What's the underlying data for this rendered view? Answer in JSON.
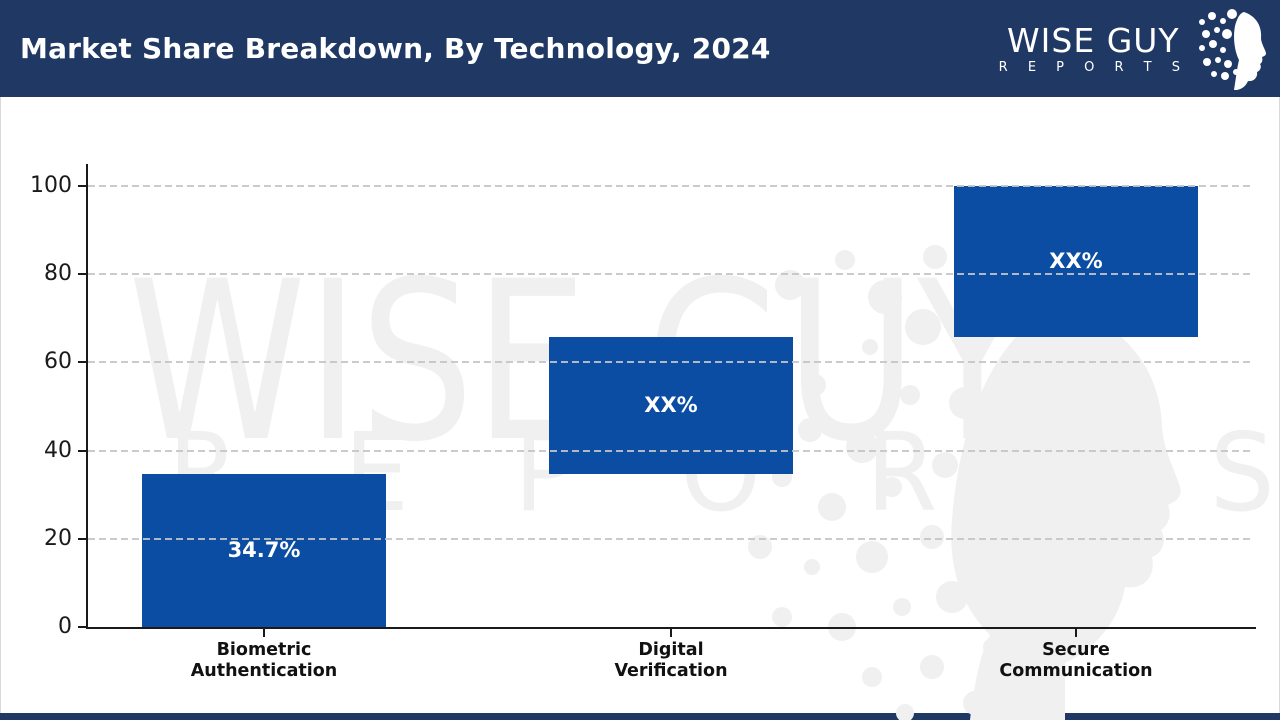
{
  "header": {
    "title": "Market Share Breakdown, By Technology, 2024",
    "logo": {
      "line1": "WISE GUY",
      "line2": "R E P O R T S"
    }
  },
  "watermark": {
    "line1": "WISE GUY",
    "line2": "R E P O R T S"
  },
  "colors": {
    "header_bg": "#1f3864",
    "bar_fill": "#0b4da2",
    "axis": "#1a1a1a",
    "gridline": "#c5c5c5",
    "bar_label_text": "#ffffff",
    "watermark": "#f0f0f0"
  },
  "chart_data": {
    "type": "bar",
    "subtype": "waterfall-floating-segments",
    "title": "Market Share Breakdown, By Technology, 2024",
    "xlabel": "",
    "ylabel": "",
    "ylim": [
      0,
      105
    ],
    "yticks": [
      0,
      20,
      40,
      60,
      80,
      100
    ],
    "grid": {
      "horizontal": true,
      "style": "dashed"
    },
    "legend": null,
    "categories": [
      [
        "Biometric",
        "Authentication"
      ],
      [
        "Digital",
        "Verification"
      ],
      [
        "Secure",
        "Communication"
      ]
    ],
    "segments": [
      {
        "category": "Biometric Authentication",
        "start": 0,
        "end": 34.7,
        "label": "34.7%"
      },
      {
        "category": "Digital Verification",
        "start": 34.7,
        "end": 65.8,
        "label": "XX%"
      },
      {
        "category": "Secure Communication",
        "start": 65.8,
        "end": 100,
        "label": "XX%"
      }
    ]
  }
}
